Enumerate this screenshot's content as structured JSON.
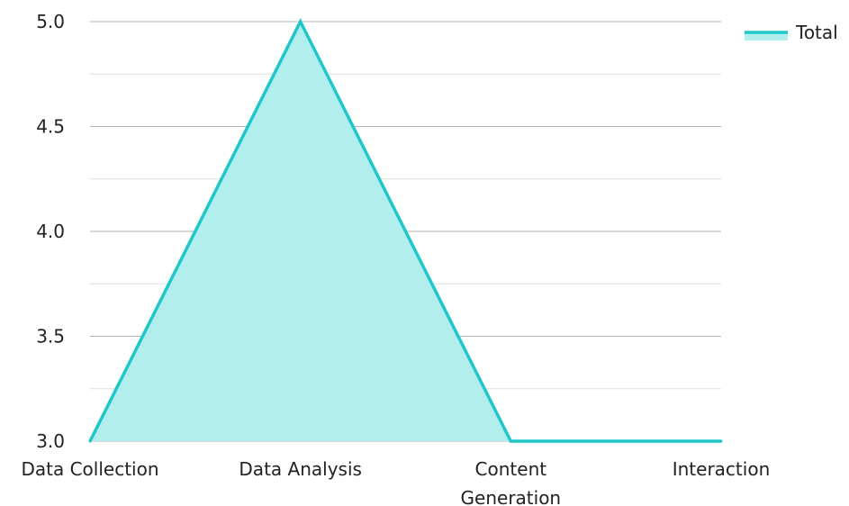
{
  "chart_data": {
    "type": "area",
    "categories": [
      "Data Collection",
      "Data Analysis",
      "Content Generation",
      "Interaction"
    ],
    "category_lines": [
      [
        "Data Collection"
      ],
      [
        "Data Analysis"
      ],
      [
        "Content",
        "Generation"
      ],
      [
        "Interaction"
      ]
    ],
    "series": [
      {
        "name": "Total",
        "values": [
          3,
          5,
          3,
          3
        ]
      }
    ],
    "ylim": [
      3.0,
      5.0
    ],
    "yticks": [
      "3.0",
      "3.5",
      "4.0",
      "4.5",
      "5.0"
    ],
    "ytick_values": [
      3.0,
      3.5,
      4.0,
      4.5,
      5.0
    ],
    "minor_yticks": [
      3.25,
      3.75,
      4.25,
      4.75
    ],
    "grid": true,
    "legend": {
      "position": "top-right"
    },
    "colors": {
      "line": "#1ec8c8",
      "fill": "#b2eeee",
      "grid_major": "#b3b3b3",
      "grid_minor": "#dddddd"
    },
    "title": "",
    "xlabel": "",
    "ylabel": ""
  }
}
